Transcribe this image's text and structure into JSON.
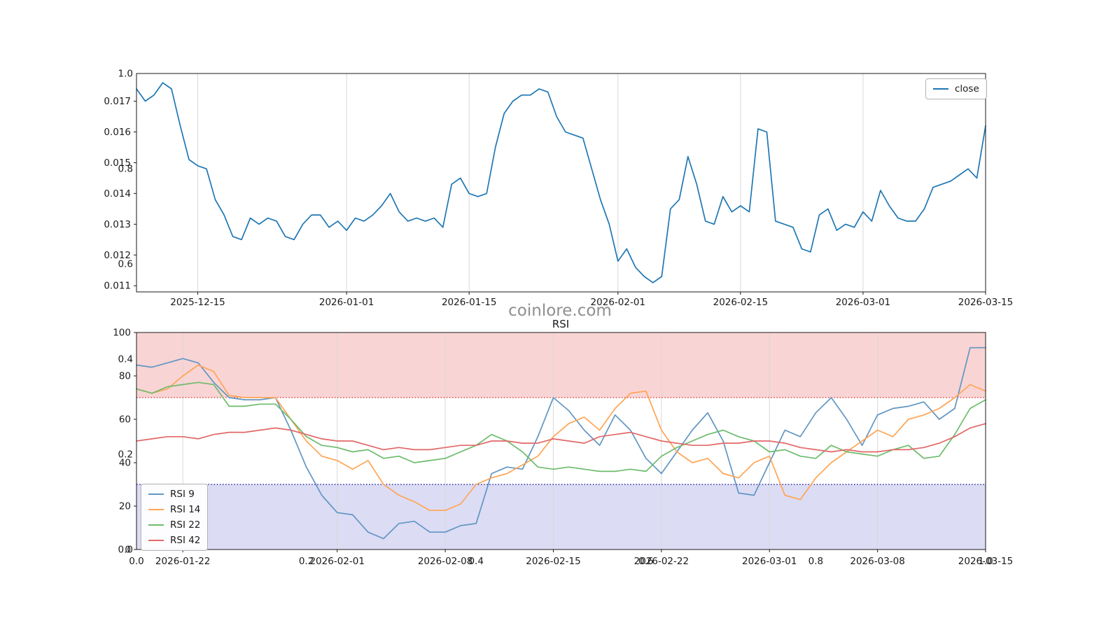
{
  "watermark": "coinlore.com",
  "chart_data": [
    {
      "type": "line",
      "title": "",
      "xlabel": "",
      "ylabel": "",
      "legend_position": "upper right",
      "grid": "vertical",
      "ylim": [
        0.0108,
        0.0179
      ],
      "ytick_values": [
        0.017,
        0.016,
        0.015,
        0.014,
        0.013,
        0.012,
        0.011
      ],
      "ytick_labels": [
        "0.017",
        "0.016",
        "0.015",
        "0.014",
        "0.013",
        "0.012",
        "0.011"
      ],
      "xticks": [
        {
          "i": 7,
          "label": "2025-12-15"
        },
        {
          "i": 24,
          "label": "2026-01-01"
        },
        {
          "i": 38,
          "label": "2026-01-15"
        },
        {
          "i": 55,
          "label": "2026-02-01"
        },
        {
          "i": 69,
          "label": "2026-02-15"
        },
        {
          "i": 83,
          "label": "2026-03-01"
        },
        {
          "i": 97,
          "label": "2026-03-15"
        }
      ],
      "series": [
        {
          "name": "close",
          "color": "#1f77b4",
          "values": [
            0.0174,
            0.017,
            0.0172,
            0.0176,
            0.0174,
            0.0162,
            0.0151,
            0.0149,
            0.0148,
            0.0138,
            0.0133,
            0.0126,
            0.0125,
            0.0132,
            0.013,
            0.0132,
            0.0131,
            0.0126,
            0.0125,
            0.013,
            0.0133,
            0.0133,
            0.0129,
            0.0131,
            0.0128,
            0.0132,
            0.0131,
            0.0133,
            0.0136,
            0.014,
            0.0134,
            0.0131,
            0.0132,
            0.0131,
            0.0132,
            0.0129,
            0.0143,
            0.0145,
            0.014,
            0.0139,
            0.014,
            0.0155,
            0.0166,
            0.017,
            0.0172,
            0.0172,
            0.0174,
            0.0173,
            0.0165,
            0.016,
            0.0159,
            0.0158,
            0.0148,
            0.0138,
            0.013,
            0.0118,
            0.0122,
            0.0116,
            0.0113,
            0.0111,
            0.0113,
            0.0135,
            0.0138,
            0.0152,
            0.0143,
            0.0131,
            0.013,
            0.0139,
            0.0134,
            0.0136,
            0.0134,
            0.0161,
            0.016,
            0.0131,
            0.013,
            0.0129,
            0.0122,
            0.0121,
            0.0133,
            0.0135,
            0.0128,
            0.013,
            0.0129,
            0.0134,
            0.0131,
            0.0141,
            0.0136,
            0.0132,
            0.0131,
            0.0131,
            0.0135,
            0.0142,
            0.0143,
            0.0144,
            0.0146,
            0.0148,
            0.0145,
            0.0162
          ]
        }
      ]
    },
    {
      "type": "line",
      "title": "RSI",
      "xlabel": "",
      "ylabel": "",
      "legend_position": "lower left",
      "grid": "vertical",
      "ylim": [
        0,
        100
      ],
      "ytick_values": [
        100,
        80,
        60,
        40,
        20,
        0
      ],
      "ytick_labels": [
        "100",
        "80",
        "60",
        "40",
        "20",
        "0"
      ],
      "overbought_level": 70,
      "oversold_level": 30,
      "overbought_band_color": "#f9d4d4",
      "oversold_band_color": "#dcdcf5",
      "overbought_line_color": "#d62728",
      "oversold_line_color": "#00008b",
      "xticks": [
        {
          "i": 3,
          "label": "2026-01-22"
        },
        {
          "i": 13,
          "label": "2026-02-01"
        },
        {
          "i": 20,
          "label": "2026-02-08"
        },
        {
          "i": 27,
          "label": "2026-02-15"
        },
        {
          "i": 34,
          "label": "2026-02-22"
        },
        {
          "i": 41,
          "label": "2026-03-01"
        },
        {
          "i": 48,
          "label": "2026-03-08"
        },
        {
          "i": 55,
          "label": "2026-03-15"
        }
      ],
      "series": [
        {
          "name": "RSI 9",
          "color": "#6196c3",
          "values": [
            85,
            84,
            86,
            88,
            86,
            77,
            70,
            69,
            69,
            70,
            55,
            38,
            25,
            17,
            16,
            8,
            5,
            12,
            13,
            8,
            8,
            11,
            12,
            35,
            38,
            37,
            52,
            70,
            64,
            55,
            48,
            62,
            55,
            42,
            35,
            45,
            55,
            63,
            50,
            26,
            25,
            40,
            55,
            52,
            63,
            70,
            60,
            48,
            62,
            65,
            66,
            68,
            60,
            65,
            93,
            93
          ]
        },
        {
          "name": "RSI 14",
          "color": "#ffa556",
          "values": [
            74,
            72,
            74,
            80,
            85,
            82,
            71,
            70,
            70,
            70,
            60,
            50,
            43,
            41,
            37,
            41,
            30,
            25,
            22,
            18,
            18,
            21,
            30,
            33,
            35,
            39,
            43,
            52,
            58,
            61,
            55,
            65,
            72,
            73,
            55,
            45,
            40,
            42,
            35,
            33,
            40,
            43,
            25,
            23,
            33,
            40,
            45,
            50,
            55,
            52,
            60,
            62,
            65,
            70,
            76,
            73
          ]
        },
        {
          "name": "RSI 22",
          "color": "#6cbc6c",
          "values": [
            74,
            72,
            75,
            76,
            77,
            76,
            66,
            66,
            67,
            67,
            60,
            52,
            48,
            47,
            45,
            46,
            42,
            43,
            40,
            41,
            42,
            45,
            48,
            53,
            50,
            45,
            38,
            37,
            38,
            37,
            36,
            36,
            37,
            36,
            43,
            47,
            50,
            53,
            55,
            52,
            50,
            45,
            46,
            43,
            42,
            48,
            45,
            44,
            43,
            46,
            48,
            42,
            43,
            53,
            65,
            69
          ]
        },
        {
          "name": "RSI 42",
          "color": "#e26868",
          "values": [
            50,
            51,
            52,
            52,
            51,
            53,
            54,
            54,
            55,
            56,
            55,
            53,
            51,
            50,
            50,
            48,
            46,
            47,
            46,
            46,
            47,
            48,
            48,
            50,
            50,
            49,
            49,
            51,
            50,
            49,
            52,
            53,
            54,
            52,
            50,
            49,
            48,
            48,
            49,
            49,
            50,
            50,
            49,
            47,
            46,
            45,
            46,
            45,
            45,
            46,
            46,
            47,
            49,
            52,
            56,
            58
          ]
        }
      ]
    }
  ],
  "ghost_axis": {
    "y_labels": [
      "1.0",
      "0.8",
      "0.6",
      "0.4",
      "0.2",
      "0.0"
    ],
    "x_labels": [
      "0.0",
      "0.2",
      "0.4",
      "0.6",
      "0.8",
      "1.0"
    ]
  }
}
